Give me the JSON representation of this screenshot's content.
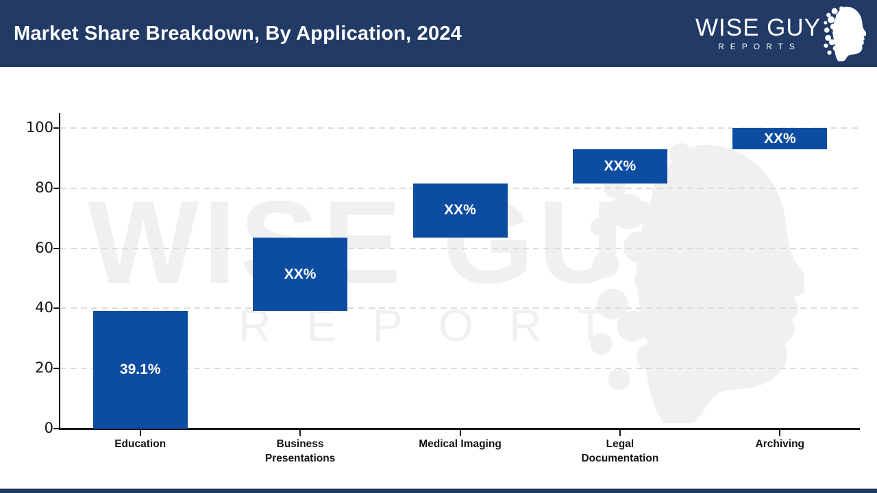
{
  "header": {
    "title": "Market Share Breakdown, By Application, 2024",
    "logo": {
      "line1": "WISE GUY",
      "line2": "REPORTS"
    }
  },
  "watermark": {
    "line1": "WISE GUY",
    "line2": "REPORTS"
  },
  "chart_data": {
    "type": "bar",
    "subtype": "waterfall",
    "title": "Market Share Breakdown, By Application, 2024",
    "categories": [
      "Education",
      "Business Presentations",
      "Medical Imaging",
      "Legal Documentation",
      "Archiving"
    ],
    "category_label_lines": [
      [
        "Education"
      ],
      [
        "Business",
        "Presentations"
      ],
      [
        "Medical Imaging"
      ],
      [
        "Legal",
        "Documentation"
      ],
      [
        "Archiving"
      ]
    ],
    "segments": [
      {
        "start": 0,
        "end": 39.1,
        "label": "39.1%"
      },
      {
        "start": 39.1,
        "end": 63.6,
        "label": "XX%"
      },
      {
        "start": 63.6,
        "end": 81.6,
        "label": "XX%"
      },
      {
        "start": 81.6,
        "end": 92.9,
        "label": "XX%"
      },
      {
        "start": 92.9,
        "end": 100,
        "label": "XX%"
      }
    ],
    "y_ticks": [
      0,
      20,
      40,
      60,
      80,
      100
    ],
    "ylim": [
      0,
      105
    ],
    "xlabel": "",
    "ylabel": "",
    "grid": "horizontal-dashed",
    "legend": "none",
    "bar_color": "#0c4da2",
    "bar_label_color": "#ffffff",
    "axis_color": "#1a1a1a",
    "gridline_color": "#dcdcdc"
  },
  "colors": {
    "header_bg": "#213a66",
    "footer_bg": "#213a66",
    "watermark": "#f0f0f2",
    "background": "#ffffff"
  }
}
